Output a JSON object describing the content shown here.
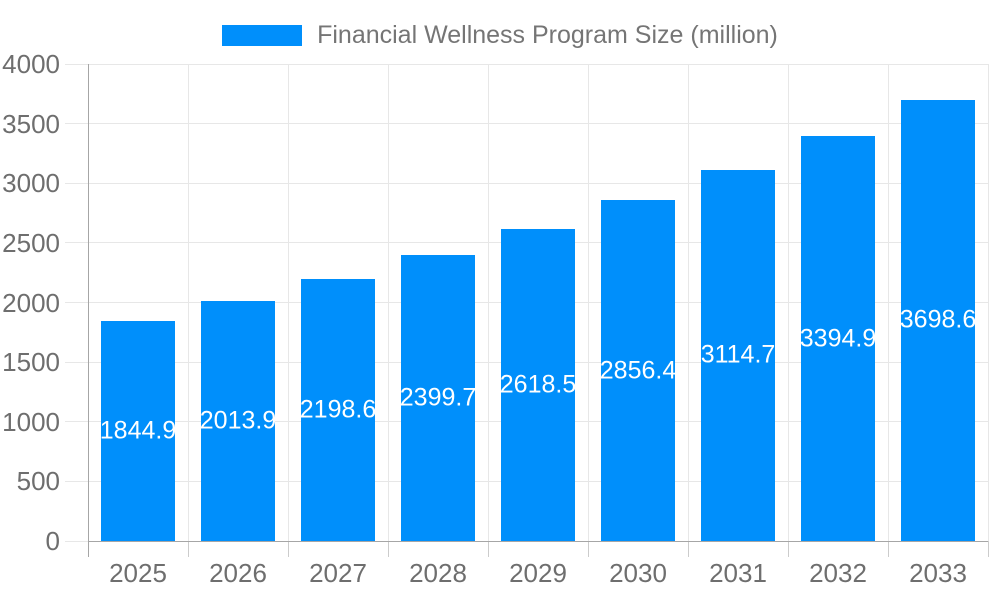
{
  "chart_data": {
    "type": "bar",
    "title": "Financial Wellness Program Size (million)",
    "series_name": "Financial Wellness Program Size (million)",
    "categories": [
      "2025",
      "2026",
      "2027",
      "2028",
      "2029",
      "2030",
      "2031",
      "2032",
      "2033"
    ],
    "values": [
      1844.9,
      2013.9,
      2198.6,
      2399.7,
      2618.5,
      2856.4,
      3114.7,
      3394.9,
      3698.6
    ],
    "value_labels": [
      "1844.9",
      "2013.9",
      "2198.6",
      "2399.7",
      "2618.5",
      "2856.4",
      "3114.7",
      "3394.9",
      "3698.6"
    ],
    "xlabel": "",
    "ylabel": "",
    "ylim": [
      0,
      4000
    ],
    "ytick_step": 500,
    "ytick_labels": [
      "0",
      "500",
      "1000",
      "1500",
      "2000",
      "2500",
      "3000",
      "3500",
      "4000"
    ],
    "grid": true,
    "legend_position": "top",
    "colors": {
      "bar": "#008FFB",
      "value_label_text": "#ffffff",
      "grid": "#e7e7e7",
      "axis": "#a6a6a6",
      "axis_text": "#6e6e6e",
      "legend_text": "#757575",
      "background": "#ffffff"
    }
  }
}
